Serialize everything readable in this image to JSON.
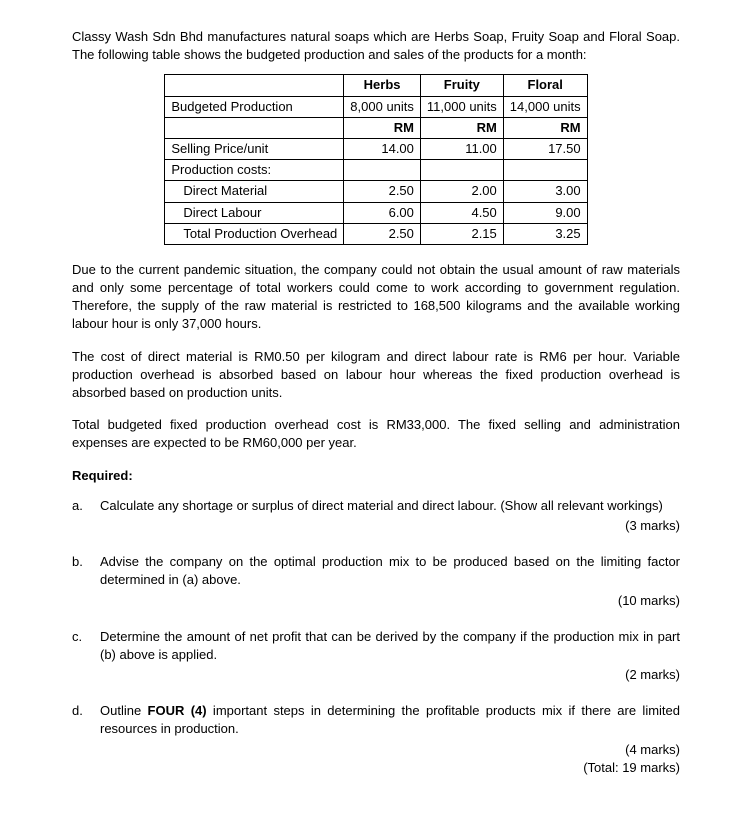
{
  "intro": "Classy Wash Sdn Bhd manufactures natural soaps which are Herbs Soap, Fruity Soap and Floral Soap. The following table shows the budgeted production and sales of the products for a month:",
  "table": {
    "col1": "Herbs",
    "col2": "Fruity",
    "col3": "Floral",
    "row_budget": "Budgeted Production",
    "bud1": "8,000 units",
    "bud2": "11,000 units",
    "bud3": "14,000 units",
    "cur1": "RM",
    "cur2": "RM",
    "cur3": "RM",
    "row_sell": "Selling Price/unit",
    "sell1": "14.00",
    "sell2": "11.00",
    "sell3": "17.50",
    "row_prod": "Production costs:",
    "row_dm": "Direct Material",
    "dm1": "2.50",
    "dm2": "2.00",
    "dm3": "3.00",
    "row_dl": "Direct Labour",
    "dl1": "6.00",
    "dl2": "4.50",
    "dl3": "9.00",
    "row_oh": "Total Production Overhead",
    "oh1": "2.50",
    "oh2": "2.15",
    "oh3": "3.25"
  },
  "p1": "Due to the current pandemic situation, the company could not obtain the usual amount of raw materials and only some percentage of total workers could come to work according to government regulation. Therefore, the supply of the raw material is restricted to 168,500 kilograms and the available working labour hour is only 37,000 hours.",
  "p2": "The cost of direct material is RM0.50 per kilogram and direct labour rate is RM6 per hour. Variable production overhead is absorbed based on labour hour whereas the fixed production overhead is absorbed based on production units.",
  "p3": "Total budgeted fixed production overhead cost is RM33,000. The fixed selling and administration expenses are expected to be RM60,000 per year.",
  "required": "Required:",
  "q": {
    "a": {
      "let": "a.",
      "text": "Calculate any shortage or surplus of direct material and direct labour. (Show all relevant workings)",
      "marks": "(3 marks)"
    },
    "b": {
      "let": "b.",
      "text": "Advise the company on the optimal production mix to be produced based on the limiting factor determined in (a) above.",
      "marks": "(10 marks)"
    },
    "c": {
      "let": "c.",
      "text": "Determine the amount of net profit that can be derived by the company if the production mix in part (b) above is applied.",
      "marks": "(2 marks)"
    },
    "d": {
      "let": "d.",
      "pre": "Outline ",
      "bold": "FOUR (4)",
      "post": " important steps in determining the profitable products mix if there are limited resources in production.",
      "marks": "(4 marks)",
      "total": "(Total: 19 marks)"
    }
  }
}
